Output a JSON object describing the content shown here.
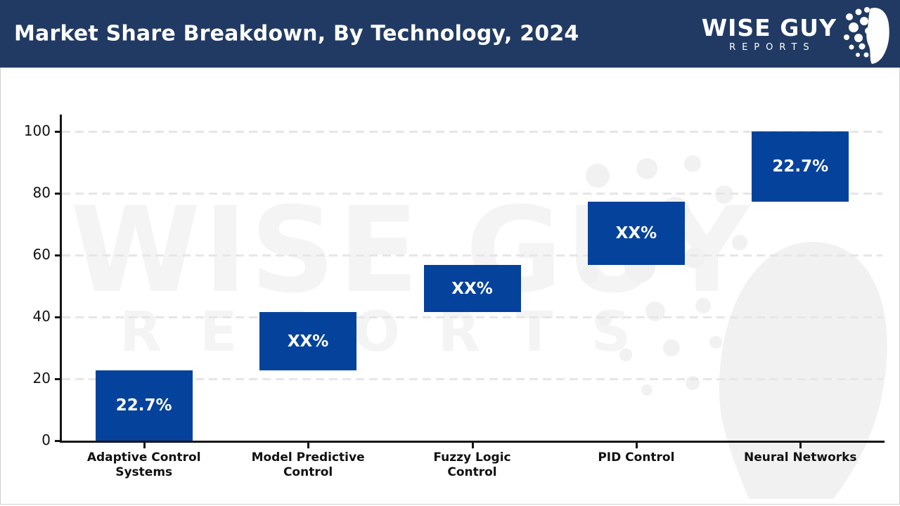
{
  "header": {
    "title": "Market Share Breakdown, By Technology, 2024",
    "bg_color": "#213a63",
    "logo": {
      "name": "WISE GUY",
      "sub": "REPORTS"
    }
  },
  "watermark": {
    "line1": "WISE GUY",
    "line2": "REPORTS"
  },
  "chart_data": {
    "type": "bar",
    "subtype": "waterfall",
    "title": "Market Share Breakdown, By Technology, 2024",
    "categories": [
      "Adaptive Control Systems",
      "Model Predictive Control",
      "Fuzzy Logic Control",
      "PID Control",
      "Neural Networks"
    ],
    "category_label_lines": [
      [
        "Adaptive Control",
        "Systems"
      ],
      [
        "Model Predictive",
        "Control"
      ],
      [
        "Fuzzy Logic",
        "Control"
      ],
      [
        "PID Control"
      ],
      [
        "Neural Networks"
      ]
    ],
    "segments": [
      {
        "category": "Adaptive Control Systems",
        "start": 0,
        "end": 22.7,
        "label": "22.7%"
      },
      {
        "category": "Model Predictive Control",
        "start": 22.7,
        "end": 41.6,
        "label": "XX%"
      },
      {
        "category": "Fuzzy Logic Control",
        "start": 41.6,
        "end": 56.8,
        "label": "XX%"
      },
      {
        "category": "PID Control",
        "start": 56.8,
        "end": 77.3,
        "label": "XX%"
      },
      {
        "category": "Neural Networks",
        "start": 77.3,
        "end": 100,
        "label": "22.7%"
      }
    ],
    "ylim": [
      0,
      100
    ],
    "yticks": [
      0,
      20,
      40,
      60,
      80,
      100
    ],
    "xlabel": "",
    "ylabel": "",
    "grid": "horizontal-dashed",
    "legend": "none",
    "bar_color": "#05429c",
    "bar_label_color": "#ffffff",
    "axis_color": "#151515",
    "gridline_color": "#e6e6e6"
  }
}
